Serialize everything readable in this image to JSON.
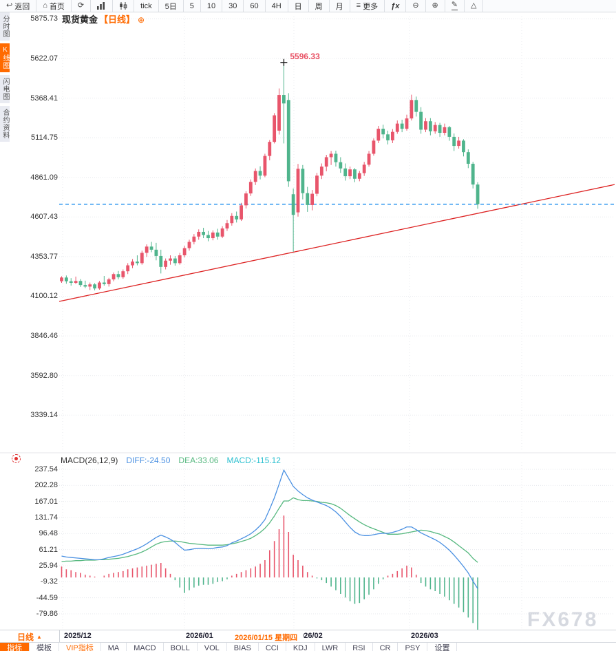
{
  "icon_glyphs": {
    "back-icon": "↩",
    "home-icon": "⌂",
    "refresh-icon": "⟳",
    "column-chart-icon": "svg-cols",
    "candlestick-icon": "svg-candle",
    "menu-icon": "≡",
    "zoom-out-icon": "⊖",
    "zoom-in-icon": "⊕",
    "pencil-icon": "✎",
    "triangle-icon": "△",
    "plus-circle-icon": "⊕",
    "up-triangle-icon": "▲",
    "indicator-dot-icon": "target-dot"
  },
  "toolbar": {
    "items": [
      {
        "name": "back",
        "label": "返回",
        "icon": "back-icon"
      },
      {
        "name": "home",
        "label": "首页",
        "icon": "home-icon"
      },
      {
        "name": "refresh",
        "label": "",
        "icon": "refresh-icon"
      },
      {
        "name": "column-chart",
        "label": "",
        "icon": "column-chart-icon"
      },
      {
        "name": "candlestick",
        "label": "",
        "icon": "candlestick-icon"
      },
      {
        "name": "tick",
        "label": "tick"
      },
      {
        "name": "5d",
        "label": "5日"
      },
      {
        "name": "5m",
        "label": "5"
      },
      {
        "name": "10m",
        "label": "10"
      },
      {
        "name": "30m",
        "label": "30"
      },
      {
        "name": "60m",
        "label": "60"
      },
      {
        "name": "4h",
        "label": "4H"
      },
      {
        "name": "day",
        "label": "日"
      },
      {
        "name": "week",
        "label": "周"
      },
      {
        "name": "month",
        "label": "月"
      },
      {
        "name": "more",
        "label": "更多",
        "icon": "menu-icon"
      },
      {
        "name": "fx",
        "label": "ƒx"
      },
      {
        "name": "zoom-out",
        "label": "",
        "icon": "zoom-out-icon"
      },
      {
        "name": "zoom-in",
        "label": "",
        "icon": "zoom-in-icon"
      },
      {
        "name": "draw",
        "label": "",
        "icon": "pencil-icon"
      },
      {
        "name": "shapes",
        "label": "",
        "icon": "triangle-icon"
      }
    ]
  },
  "sidebar": {
    "tabs": [
      {
        "label": "分时图",
        "active": false
      },
      {
        "label": "K线图",
        "active": true
      },
      {
        "label": "闪电图",
        "active": false
      },
      {
        "label": "合约资料",
        "active": false
      }
    ]
  },
  "chart_header": {
    "symbol": "现货黄金",
    "period": "【日线】"
  },
  "macd": {
    "title": "MACD(26,12,9)",
    "diff_label": "DIFF:-24.50",
    "dea_label": "DEA:33.06",
    "macd_label": "MACD:-115.12"
  },
  "xaxis": {
    "period": "日线",
    "selected_date": "2026/01/15 星期四"
  },
  "indicator_tabs": [
    {
      "label": "指标",
      "active": true
    },
    {
      "label": "模板"
    },
    {
      "label": "VIP指标",
      "accent": true
    },
    {
      "label": "MA"
    },
    {
      "label": "MACD"
    },
    {
      "label": "BOLL"
    },
    {
      "label": "VOL"
    },
    {
      "label": "BIAS"
    },
    {
      "label": "CCI"
    },
    {
      "label": "KDJ"
    },
    {
      "label": "LWR"
    },
    {
      "label": "RSI"
    },
    {
      "label": "CR"
    },
    {
      "label": "PSY"
    },
    {
      "label": "设置"
    }
  ],
  "watermark": "FX678",
  "colors": {
    "accent_orange": "#ff6a00",
    "up": "#e8556b",
    "down": "#4fb48c",
    "diff_line": "#4a90e2",
    "dea_line": "#56b87f",
    "macd_value": "#2cc0d0",
    "diff_value": "#4a90e2",
    "dea_value": "#56b87f",
    "trend_line": "#dd2222",
    "last_price_line": "#1f8fee",
    "grid": "#e7e9ee",
    "axis_text": "#333333",
    "annotation": "#e85063",
    "watermark": "#c9cdd6"
  },
  "chart_data": {
    "type": "candlestick+macd",
    "symbol": "现货黄金",
    "period": "日线",
    "price_tick_labels": [
      "5875.73",
      "5622.07",
      "5368.41",
      "5114.75",
      "4861.09",
      "4607.43",
      "4353.77",
      "4100.12",
      "3846.46",
      "3592.80",
      "3339.14"
    ],
    "macd_tick_labels": [
      "237.54",
      "202.28",
      "167.01",
      "131.74",
      "96.48",
      "61.21",
      "25.94",
      "-9.32",
      "-44.59",
      "-79.86"
    ],
    "x_labels": [
      "2025/12",
      "2026/01",
      "2026/02",
      "2026/03"
    ],
    "high_annotation_label": "5596.33",
    "crosshair": {
      "index": 47,
      "price": 5596.33,
      "date": "2026/01/15 星期四"
    },
    "last_price": 4689,
    "trend_line": {
      "start_price": 4067,
      "end_price": 4815
    },
    "candles": [
      [
        4196,
        4228,
        4186,
        4220
      ],
      [
        4220,
        4233,
        4180,
        4196
      ],
      [
        4196,
        4216,
        4168,
        4186
      ],
      [
        4186,
        4226,
        4178,
        4198
      ],
      [
        4198,
        4210,
        4160,
        4172
      ],
      [
        4172,
        4200,
        4152,
        4162
      ],
      [
        4162,
        4188,
        4140,
        4176
      ],
      [
        4176,
        4184,
        4138,
        4150
      ],
      [
        4150,
        4198,
        4142,
        4188
      ],
      [
        4188,
        4230,
        4168,
        4178
      ],
      [
        4178,
        4218,
        4162,
        4208
      ],
      [
        4208,
        4252,
        4196,
        4242
      ],
      [
        4242,
        4262,
        4208,
        4222
      ],
      [
        4222,
        4272,
        4212,
        4260
      ],
      [
        4260,
        4312,
        4242,
        4298
      ],
      [
        4298,
        4338,
        4280,
        4322
      ],
      [
        4322,
        4362,
        4298,
        4312
      ],
      [
        4312,
        4392,
        4302,
        4378
      ],
      [
        4378,
        4432,
        4352,
        4418
      ],
      [
        4418,
        4448,
        4382,
        4398
      ],
      [
        4398,
        4442,
        4330,
        4358
      ],
      [
        4358,
        4398,
        4246,
        4288
      ],
      [
        4288,
        4342,
        4272,
        4328
      ],
      [
        4328,
        4362,
        4302,
        4342
      ],
      [
        4342,
        4358,
        4296,
        4312
      ],
      [
        4312,
        4378,
        4302,
        4362
      ],
      [
        4362,
        4422,
        4348,
        4408
      ],
      [
        4408,
        4462,
        4392,
        4448
      ],
      [
        4448,
        4498,
        4432,
        4482
      ],
      [
        4482,
        4528,
        4462,
        4512
      ],
      [
        4512,
        4538,
        4472,
        4492
      ],
      [
        4492,
        4518,
        4452,
        4472
      ],
      [
        4472,
        4522,
        4458,
        4508
      ],
      [
        4508,
        4532,
        4462,
        4482
      ],
      [
        4482,
        4548,
        4472,
        4534
      ],
      [
        4534,
        4588,
        4518,
        4568
      ],
      [
        4568,
        4632,
        4552,
        4614
      ],
      [
        4614,
        4642,
        4572,
        4592
      ],
      [
        4592,
        4698,
        4582,
        4682
      ],
      [
        4682,
        4772,
        4662,
        4758
      ],
      [
        4758,
        4848,
        4742,
        4832
      ],
      [
        4832,
        4918,
        4812,
        4902
      ],
      [
        4902,
        4932,
        4848,
        4872
      ],
      [
        4872,
        5012,
        4862,
        4998
      ],
      [
        4998,
        5100,
        4970,
        5088
      ],
      [
        5088,
        5272,
        5078,
        5258
      ],
      [
        5160,
        5430,
        5135,
        5388
      ],
      [
        5388,
        5596.33,
        5078,
        5334
      ],
      [
        5356,
        5400,
        4800,
        4836
      ],
      [
        4753,
        4790,
        4385,
        4621
      ],
      [
        4637,
        4947,
        4610,
        4916
      ],
      [
        4916,
        4940,
        4720,
        4760
      ],
      [
        4760,
        4800,
        4640,
        4684
      ],
      [
        4684,
        4780,
        4650,
        4756
      ],
      [
        4756,
        4890,
        4740,
        4872
      ],
      [
        4872,
        4950,
        4850,
        4930
      ],
      [
        4930,
        5005,
        4900,
        4990
      ],
      [
        4990,
        5030,
        4940,
        5012
      ],
      [
        5012,
        5032,
        4930,
        4958
      ],
      [
        4958,
        4990,
        4890,
        4918
      ],
      [
        4918,
        4950,
        4840,
        4868
      ],
      [
        4868,
        4930,
        4850,
        4912
      ],
      [
        4912,
        4920,
        4830,
        4852
      ],
      [
        4852,
        4902,
        4836,
        4888
      ],
      [
        4888,
        4960,
        4870,
        4942
      ],
      [
        4942,
        5030,
        4930,
        5012
      ],
      [
        5012,
        5110,
        5000,
        5096
      ],
      [
        5096,
        5190,
        5080,
        5172
      ],
      [
        5172,
        5198,
        5110,
        5136
      ],
      [
        5136,
        5160,
        5072,
        5098
      ],
      [
        5098,
        5170,
        5080,
        5152
      ],
      [
        5152,
        5225,
        5140,
        5205
      ],
      [
        5205,
        5230,
        5150,
        5172
      ],
      [
        5172,
        5262,
        5160,
        5238
      ],
      [
        5238,
        5390,
        5225,
        5356
      ],
      [
        5356,
        5378,
        5250,
        5280
      ],
      [
        5280,
        5310,
        5140,
        5166
      ],
      [
        5166,
        5240,
        5150,
        5220
      ],
      [
        5220,
        5240,
        5130,
        5156
      ],
      [
        5156,
        5215,
        5140,
        5196
      ],
      [
        5196,
        5210,
        5120,
        5146
      ],
      [
        5146,
        5205,
        5130,
        5182
      ],
      [
        5182,
        5190,
        5095,
        5120
      ],
      [
        5120,
        5142,
        5030,
        5062
      ],
      [
        5062,
        5120,
        5045,
        5096
      ],
      [
        5096,
        5105,
        4995,
        5022
      ],
      [
        5022,
        5040,
        4920,
        4948
      ],
      [
        4948,
        4960,
        4790,
        4815
      ],
      [
        4815,
        4830,
        4660,
        4689
      ]
    ],
    "macd_series": {
      "diff": [
        47,
        45,
        44,
        43,
        42,
        41,
        40,
        39,
        39,
        41,
        44,
        46,
        48,
        51,
        55,
        59,
        63,
        68,
        74,
        81,
        88,
        93,
        89,
        84,
        77,
        68,
        60,
        61,
        63,
        64,
        64,
        63,
        64,
        66,
        67,
        70,
        76,
        80,
        85,
        90,
        96,
        104,
        114,
        127,
        150,
        175,
        205,
        236,
        218,
        200,
        190,
        182,
        175,
        170,
        166,
        162,
        158,
        152,
        144,
        134,
        122,
        110,
        100,
        94,
        92,
        92,
        94,
        96,
        97,
        97,
        99,
        102,
        106,
        111,
        111,
        105,
        98,
        93,
        88,
        83,
        77,
        69,
        60,
        49,
        37,
        24,
        10,
        -8,
        -24.5
      ],
      "dea": [
        35,
        36,
        36,
        37,
        37,
        38,
        38,
        38,
        39,
        39,
        40,
        41,
        42,
        44,
        46,
        49,
        52,
        56,
        61,
        67,
        73,
        77,
        79,
        80,
        80,
        79,
        77,
        75,
        74,
        73,
        72,
        71,
        71,
        71,
        71,
        72,
        74,
        76,
        79,
        82,
        86,
        92,
        99,
        108,
        120,
        135,
        152,
        168,
        168,
        175,
        171,
        169,
        169,
        168,
        167,
        165,
        164,
        162,
        158,
        152,
        144,
        136,
        129,
        122,
        116,
        111,
        107,
        103,
        99,
        95,
        95,
        95,
        96,
        98,
        100,
        102,
        104,
        103,
        101,
        98,
        95,
        90,
        85,
        78,
        70,
        62,
        54,
        42,
        33.06
      ],
      "histogram_rule": "hist = 2*(diff-dea)"
    }
  }
}
